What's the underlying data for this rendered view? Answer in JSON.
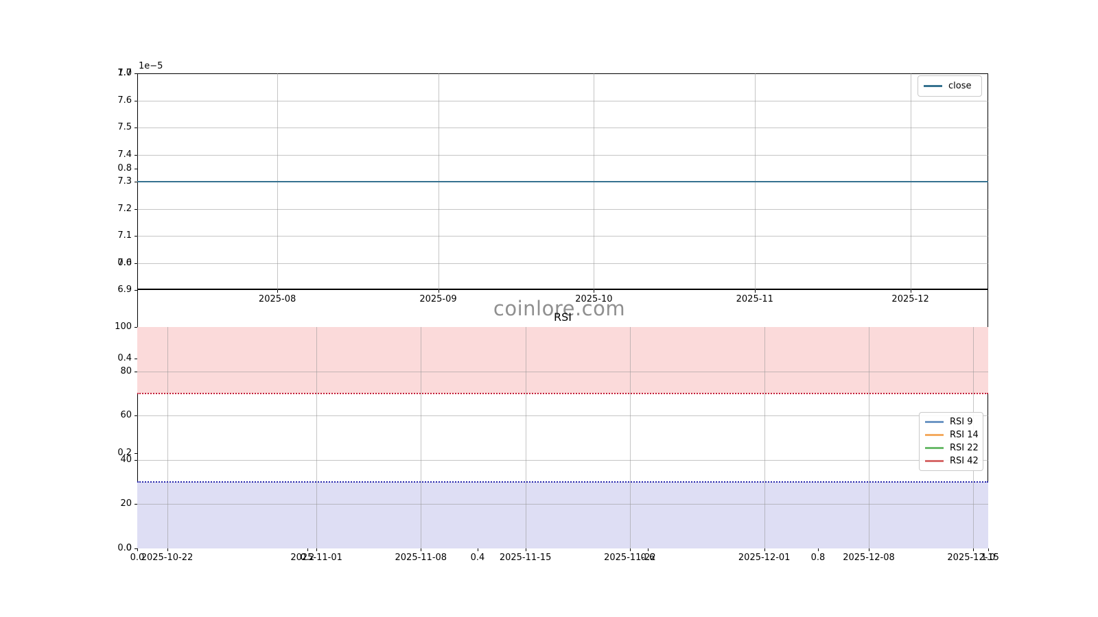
{
  "watermark": "coinlore.com",
  "price_chart": {
    "offset_label": "1e−5",
    "legend": [
      {
        "label": "close",
        "color": "#35718f"
      }
    ],
    "y_tick_labels": [
      "6.9",
      "7.0",
      "7.1",
      "7.2",
      "7.3",
      "7.4",
      "7.5",
      "7.6",
      "7.7"
    ],
    "x_tick_labels": [
      "2025-08",
      "2025-09",
      "2025-10",
      "2025-11",
      "2025-12"
    ]
  },
  "rsi_chart": {
    "title": "RSI",
    "legend": [
      {
        "label": "RSI 9",
        "color": "#6d96c4"
      },
      {
        "label": "RSI 14",
        "color": "#f4aa5f"
      },
      {
        "label": "RSI 22",
        "color": "#6aba6a"
      },
      {
        "label": "RSI 42",
        "color": "#d66969"
      }
    ],
    "y_tick_labels": [
      "0",
      "20",
      "40",
      "60",
      "80",
      "100"
    ],
    "x_tick_labels": [
      "2025-10-22",
      "2025-11-01",
      "2025-11-08",
      "2025-11-15",
      "2025-11-22",
      "2025-12-01",
      "2025-12-08",
      "2025-12-15"
    ]
  },
  "overlay_axes": {
    "x_tick_labels": [
      "0.0",
      "0.2",
      "0.4",
      "0.6",
      "0.8",
      "1.0"
    ],
    "y_tick_labels": [
      "0.0",
      "0.2",
      "0.4",
      "0.6",
      "0.8",
      "1.0"
    ]
  },
  "chart_data": [
    {
      "type": "line",
      "title": "",
      "ylabel": "",
      "xlabel": "",
      "y_offset_scale": "1e-5",
      "ylim": [
        6.9,
        7.7
      ],
      "y_ticks": [
        6.9,
        7.0,
        7.1,
        7.2,
        7.3,
        7.4,
        7.5,
        7.6,
        7.7
      ],
      "x_range": [
        "2025-07-05",
        "2025-12-16"
      ],
      "x_tick_dates": [
        "2025-08-01",
        "2025-09-01",
        "2025-10-01",
        "2025-11-01",
        "2025-12-01"
      ],
      "grid": true,
      "legend_position": "upper right",
      "series": [
        {
          "name": "close",
          "color": "#35718f",
          "shape": "constant",
          "y_constant": 7.3,
          "note": "flat horizontal line at 7.3e-5 across entire x range"
        }
      ]
    },
    {
      "type": "line",
      "title": "RSI",
      "ylim": [
        0,
        100
      ],
      "y_ticks": [
        0,
        20,
        40,
        60,
        80,
        100
      ],
      "x_range": [
        "2025-10-20",
        "2025-12-16"
      ],
      "x_tick_dates": [
        "2025-10-22",
        "2025-11-01",
        "2025-11-08",
        "2025-11-15",
        "2025-11-22",
        "2025-12-01",
        "2025-12-08",
        "2025-12-15"
      ],
      "grid": true,
      "legend_position": "right",
      "overbought_level": 70,
      "oversold_level": 30,
      "overbought_band": {
        "from": 70,
        "to": 100,
        "fill": "#fbdada",
        "line_color": "#c21f3a",
        "line_style": "dotted"
      },
      "oversold_band": {
        "from": 0,
        "to": 30,
        "fill": "#dedef4",
        "line_color": "#2626ad",
        "line_style": "dotted"
      },
      "series": [
        {
          "name": "RSI 9",
          "color": "#6d96c4",
          "values_visible": false
        },
        {
          "name": "RSI 14",
          "color": "#f4aa5f",
          "values_visible": false
        },
        {
          "name": "RSI 22",
          "color": "#6aba6a",
          "values_visible": false
        },
        {
          "name": "RSI 42",
          "color": "#d66969",
          "values_visible": false
        }
      ]
    },
    {
      "type": "overlay-empty-axes",
      "note": "default matplotlib axes overlapping both subplots, ticks 0.0-1.0 on both axes",
      "x_ticks": [
        0,
        0.2,
        0.4,
        0.6,
        0.8,
        1.0
      ],
      "y_ticks": [
        0,
        0.2,
        0.4,
        0.6,
        0.8,
        1.0
      ],
      "grid": false
    }
  ]
}
